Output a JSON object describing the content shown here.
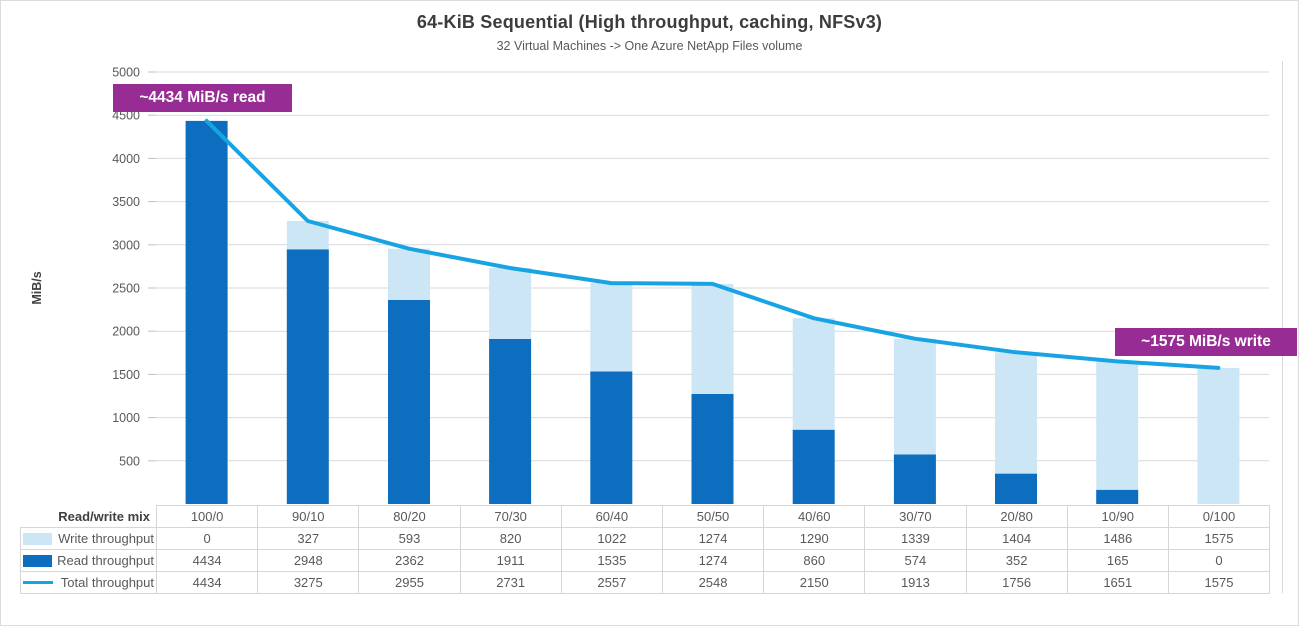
{
  "title": "64-KiB Sequential (High throughput, caching, NFSv3)",
  "subtitle": "32 Virtual Machines -> One Azure NetApp Files volume",
  "annotations": {
    "read": "~4434 MiB/s read",
    "write": "~1575 MiB/s write"
  },
  "colors": {
    "read_bar": "#0D6DBF",
    "write_bar": "#CDE6F6",
    "total_line": "#18A4E3",
    "annotation_bg": "#982C95",
    "grid": "#D9D9D9",
    "tick": "#C0C0C0",
    "axis_text": "#595959",
    "table_border": "#D6D6D6",
    "table_text": "#595959",
    "title_text": "#3C3C3C"
  },
  "chart_data": {
    "type": "bar",
    "subtype": "stacked-bars-with-line-overlay",
    "title": "64-KiB Sequential (High throughput, caching, NFSv3)",
    "subtitle": "32 Virtual Machines -> One Azure NetApp Files volume",
    "xlabel": "",
    "ylabel": "MiB/s",
    "ylim": [
      0,
      5000
    ],
    "ytick_step": 500,
    "grid": true,
    "legend_position": "left-of-data-table-rows",
    "category_axis_label": "Read/write mix",
    "categories": [
      "100/0",
      "90/10",
      "80/20",
      "70/30",
      "60/40",
      "50/50",
      "40/60",
      "30/70",
      "20/80",
      "10/90",
      "0/100"
    ],
    "series": [
      {
        "name": "Write throughput",
        "type": "bar",
        "stack_order": "top",
        "color": "#CDE6F6",
        "values": [
          0,
          327,
          593,
          820,
          1022,
          1274,
          1290,
          1339,
          1404,
          1486,
          1575
        ]
      },
      {
        "name": "Read throughput",
        "type": "bar",
        "stack_order": "bottom",
        "color": "#0D6DBF",
        "values": [
          4434,
          2948,
          2362,
          1911,
          1535,
          1274,
          860,
          574,
          352,
          165,
          0
        ]
      },
      {
        "name": "Total throughput",
        "type": "line",
        "color": "#18A4E3",
        "values": [
          4434,
          3275,
          2955,
          2731,
          2557,
          2548,
          2150,
          1913,
          1756,
          1651,
          1575
        ]
      }
    ]
  }
}
